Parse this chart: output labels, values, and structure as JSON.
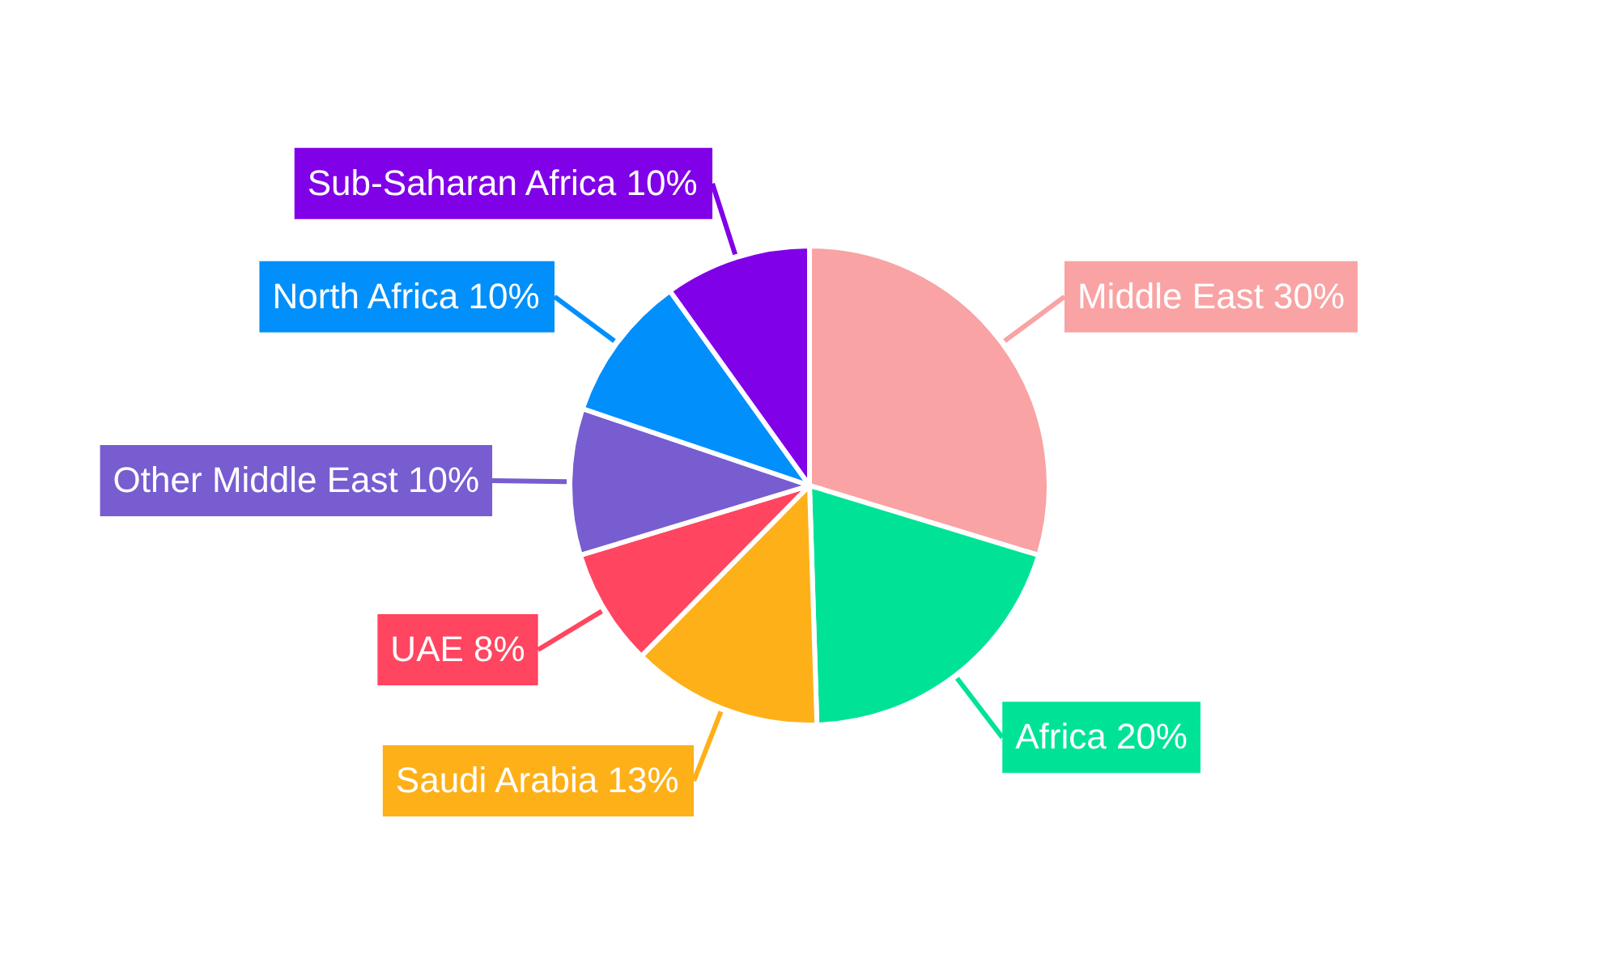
{
  "chart_data": {
    "type": "pie",
    "categories": [
      "Middle East",
      "Africa",
      "Saudi Arabia",
      "UAE",
      "Other Middle East",
      "North Africa",
      "Sub-Saharan Africa"
    ],
    "values": [
      30,
      20,
      13,
      8,
      10,
      10,
      10
    ],
    "value_labels": [
      "30%",
      "20%",
      "13%",
      "8%",
      "10%",
      "10%",
      "10%"
    ],
    "colors": [
      "#f9a3a4",
      "#00e396",
      "#feb019",
      "#ff4560",
      "#775dd0",
      "#008ffb",
      "#8000e8"
    ]
  }
}
